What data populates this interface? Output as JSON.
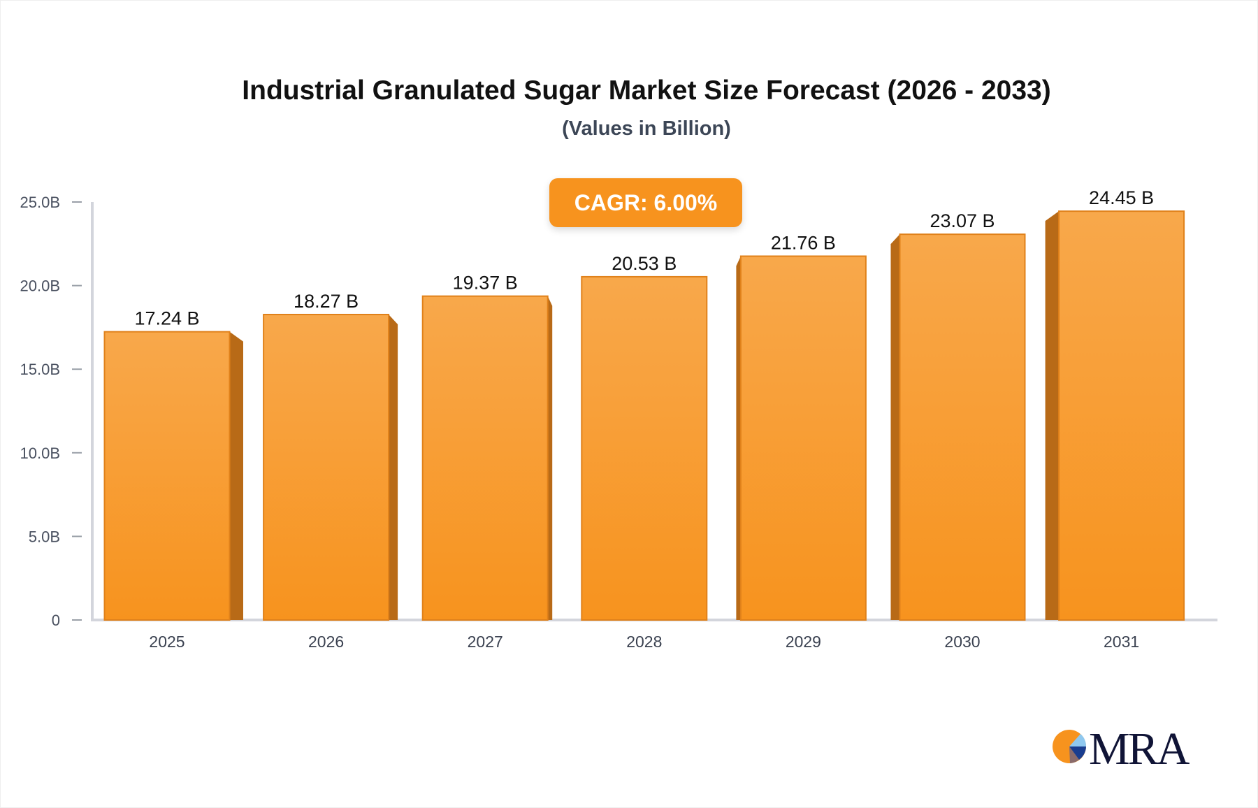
{
  "chart_data": {
    "type": "bar",
    "title": "Industrial Granulated Sugar Market Size Forecast (2026 - 2033)",
    "subtitle": "(Values in Billion)",
    "categories": [
      "2025",
      "2026",
      "2027",
      "2028",
      "2029",
      "2030",
      "2031"
    ],
    "values": [
      17.24,
      18.27,
      19.37,
      20.53,
      21.76,
      23.07,
      24.45
    ],
    "data_labels": [
      "17.24 B",
      "18.27 B",
      "19.37 B",
      "20.53 B",
      "21.76 B",
      "23.07 B",
      "24.45 B"
    ],
    "unit": "B",
    "ylim": [
      0,
      25
    ],
    "yticks": [
      0,
      5,
      10,
      15,
      20,
      25
    ],
    "ytick_labels": [
      "0",
      "5.0B",
      "10.0B",
      "15.0B",
      "20.0B",
      "25.0B"
    ],
    "grid": false,
    "annotation": "CAGR: 6.00%",
    "colors": {
      "bar_top": "#f8a84b",
      "bar_bottom": "#f7931e",
      "bar_side": "#b86a17",
      "bar_edge": "#e0811a"
    }
  },
  "logo": {
    "text": "MRA"
  }
}
